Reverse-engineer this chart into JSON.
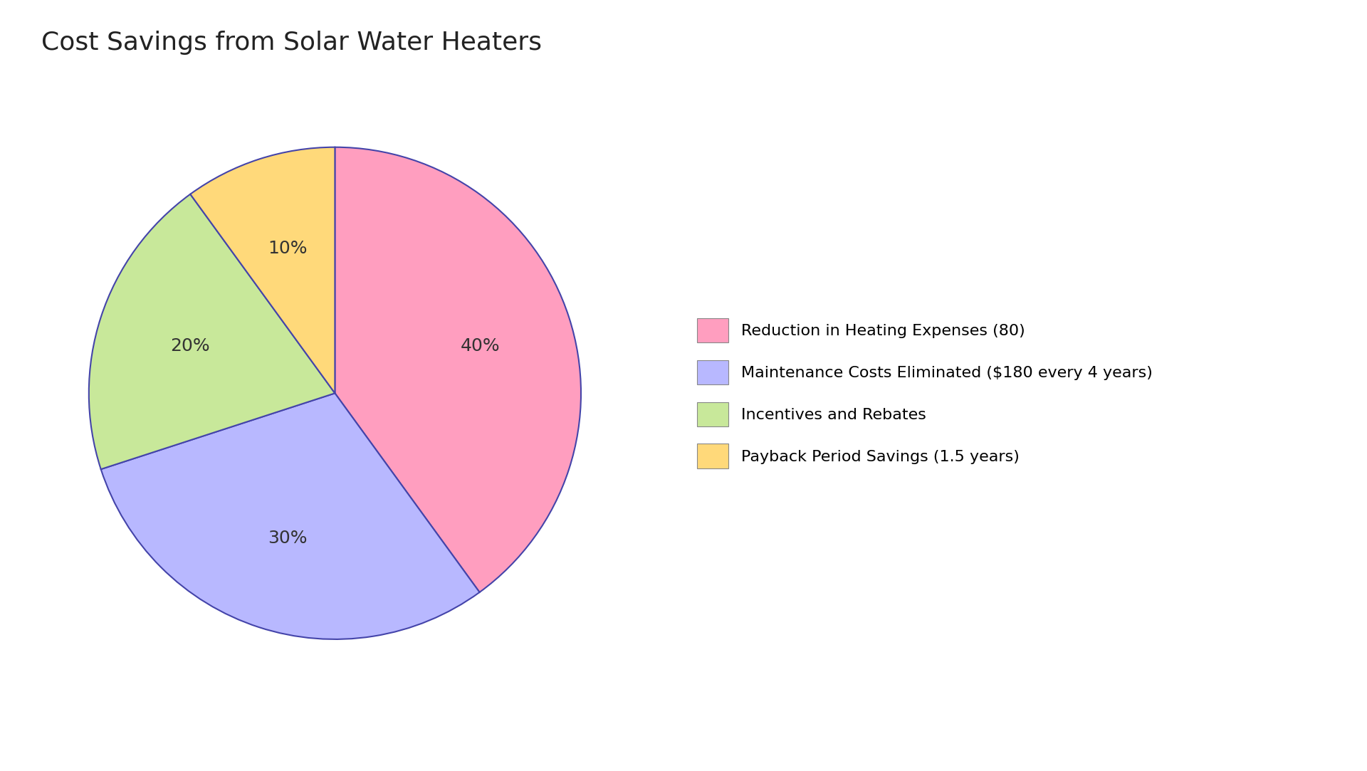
{
  "title": "Cost Savings from Solar Water Heaters",
  "slices": [
    40,
    30,
    20,
    10
  ],
  "autopct_labels": [
    "40%",
    "30%",
    "20%",
    "10%"
  ],
  "colors": [
    "#FF9EBF",
    "#B8B8FF",
    "#C8E89A",
    "#FFD97A"
  ],
  "edge_color": "#4444AA",
  "legend_labels": [
    "Reduction in Heating Expenses (80)",
    "Maintenance Costs Eliminated ($180 every 4 years)",
    "Incentives and Rebates",
    "Payback Period Savings (1.5 years)"
  ],
  "startangle": 90,
  "title_fontsize": 26,
  "background_color": "#ffffff",
  "pct_fontsize": 18,
  "legend_fontsize": 16
}
